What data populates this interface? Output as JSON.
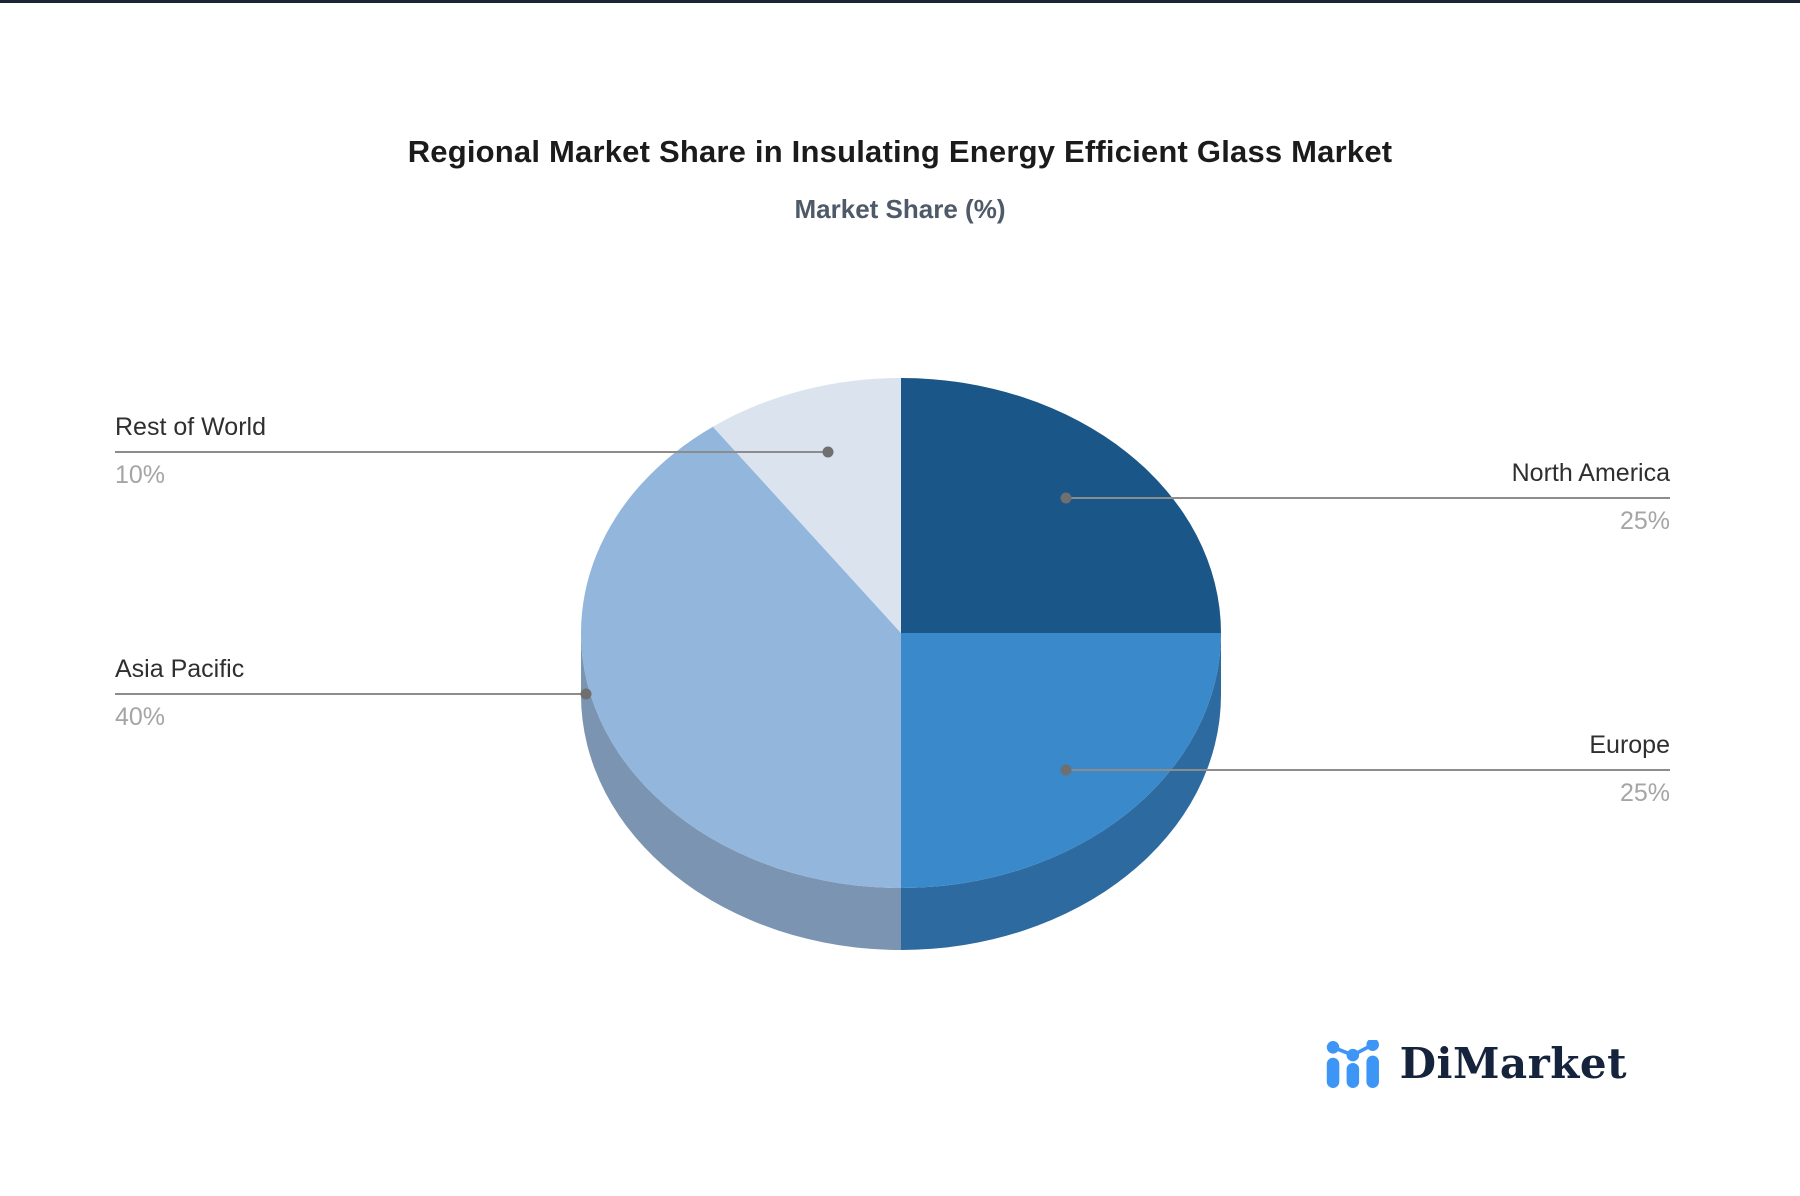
{
  "page": {
    "top_border_color": "#1c2533",
    "background_color": "#ffffff"
  },
  "header": {
    "title": "Regional Market Share in Insulating Energy Efficient Glass Market",
    "subtitle": "Market Share (%)"
  },
  "chart_data": {
    "type": "pie",
    "style": "3d",
    "title": "Regional Market Share in Insulating Energy Efficient Glass Market",
    "subtitle": "Market Share (%)",
    "unit": "%",
    "start_angle_deg": 0,
    "direction": "clockwise",
    "legend_position": "callout-labels",
    "slices": [
      {
        "label": "North America",
        "value": 25,
        "display_value": "25%",
        "color": "#1a5788",
        "side_color": "#174c76",
        "callout_side": "right"
      },
      {
        "label": "Europe",
        "value": 25,
        "display_value": "25%",
        "color": "#3a89ca",
        "side_color": "#2d6aa0",
        "callout_side": "right"
      },
      {
        "label": "Asia Pacific",
        "value": 40,
        "display_value": "40%",
        "color": "#92b6dc",
        "side_color": "#7a94b1",
        "callout_side": "left"
      },
      {
        "label": "Rest of World",
        "value": 10,
        "display_value": "10%",
        "color": "#dbe3ef",
        "side_color": "#b6c3d6",
        "callout_side": "left"
      }
    ],
    "callout_line_color": "#8c8c8c",
    "callout_dot_color": "#6f6f6f",
    "label_color": "#2f2f2f",
    "value_color": "#a5a5a5"
  },
  "branding": {
    "logo_text": "DiMarket",
    "logo_text_color": "#16233c",
    "logo_icon": "bar-line-chart-icon",
    "logo_icon_color": "#3d96f5"
  }
}
